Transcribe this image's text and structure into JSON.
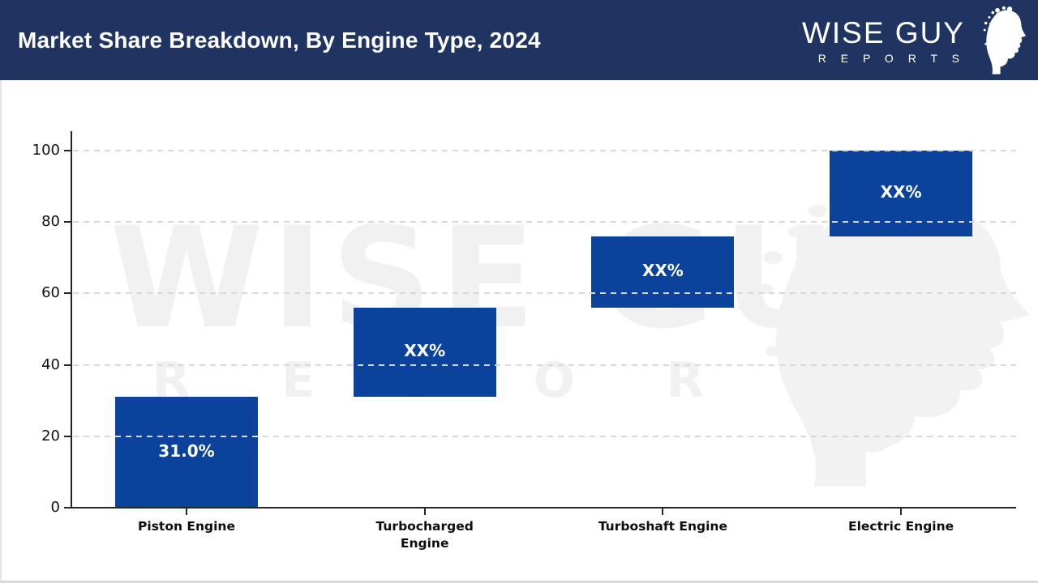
{
  "header": {
    "title": "Market Share Breakdown, By Engine Type, 2024",
    "logo": {
      "name_line": "WISE GUY",
      "reports_line": "R E P O R T S"
    },
    "bg_color": "#203462"
  },
  "watermark": {
    "line1": "WISE GUY",
    "line2": "R E P O R T S"
  },
  "chart_data": {
    "type": "bar",
    "variant": "waterfall",
    "title": "Market Share Breakdown, By Engine Type, 2024",
    "categories": [
      "Piston Engine",
      "Turbocharged Engine",
      "Turboshaft Engine",
      "Electric Engine"
    ],
    "categories_display": [
      "Piston Engine",
      "Turbocharged\nEngine",
      "Turboshaft Engine",
      "Electric Engine"
    ],
    "series": [
      {
        "name": "Market share",
        "segments": [
          [
            0,
            31
          ],
          [
            31,
            56
          ],
          [
            56,
            76
          ],
          [
            76,
            100
          ]
        ],
        "segment_sizes": [
          31,
          25,
          20,
          24
        ]
      }
    ],
    "bar_labels": [
      "31.0%",
      "XX%",
      "XX%",
      "XX%"
    ],
    "xlabel": "",
    "ylabel": "",
    "ylim": [
      0,
      105
    ],
    "yticks": [
      0,
      20,
      40,
      60,
      80,
      100
    ],
    "grid": "horizontal-dashed-above-bars",
    "legend": "none",
    "bar_color": "#0B429C",
    "bar_label_color": "#FFFFFF",
    "axis_color": "#262626",
    "gridline_color": "#D8D8D8"
  }
}
